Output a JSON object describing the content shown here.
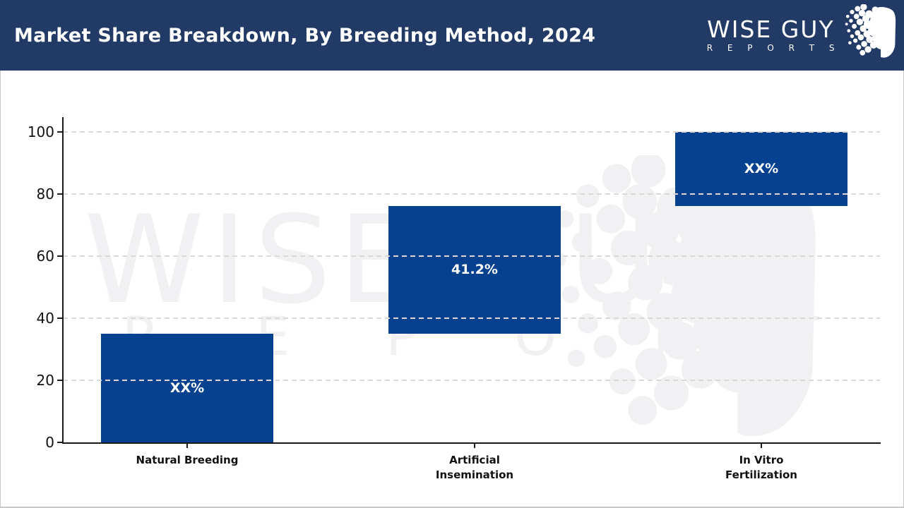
{
  "header": {
    "title": "Market Share Breakdown, By Breeding Method, 2024",
    "logo": {
      "line1": "WISE GUY",
      "line2": "R E P O R T S"
    }
  },
  "watermark": {
    "line1": "WISE GUY",
    "line2": "R E P O R T S"
  },
  "chart_data": {
    "type": "bar",
    "subtype": "floating-waterfall",
    "title": "Market Share Breakdown, By Breeding Method, 2024",
    "categories": [
      "Natural Breeding",
      "Artificial Insemination",
      "In Vitro Fertilization"
    ],
    "category_label_lines": [
      [
        "Natural Breeding"
      ],
      [
        "Artificial",
        "Insemination"
      ],
      [
        "In Vitro",
        "Fertilization"
      ]
    ],
    "bars": [
      {
        "category": "Natural Breeding",
        "start": 0,
        "end": 35,
        "label": "XX%"
      },
      {
        "category": "Artificial Insemination",
        "start": 35,
        "end": 76.2,
        "value": 41.2,
        "label": "41.2%"
      },
      {
        "category": "In Vitro Fertilization",
        "start": 76.2,
        "end": 100,
        "label": "XX%"
      }
    ],
    "xlabel": "",
    "ylabel": "",
    "yticks": [
      0,
      20,
      40,
      60,
      80,
      100
    ],
    "ylim": [
      0,
      104.8
    ],
    "grid": "horizontal-dashed",
    "legend": null
  },
  "colors": {
    "header_bg": "#213a66",
    "bar": "#06418f",
    "grid": "#d9d9d9",
    "axis": "#1a1a1a",
    "text": "#111111",
    "bar_label": "#ffffff",
    "panel_border": "#c9c9c9",
    "watermark": "#f1f1f3"
  }
}
